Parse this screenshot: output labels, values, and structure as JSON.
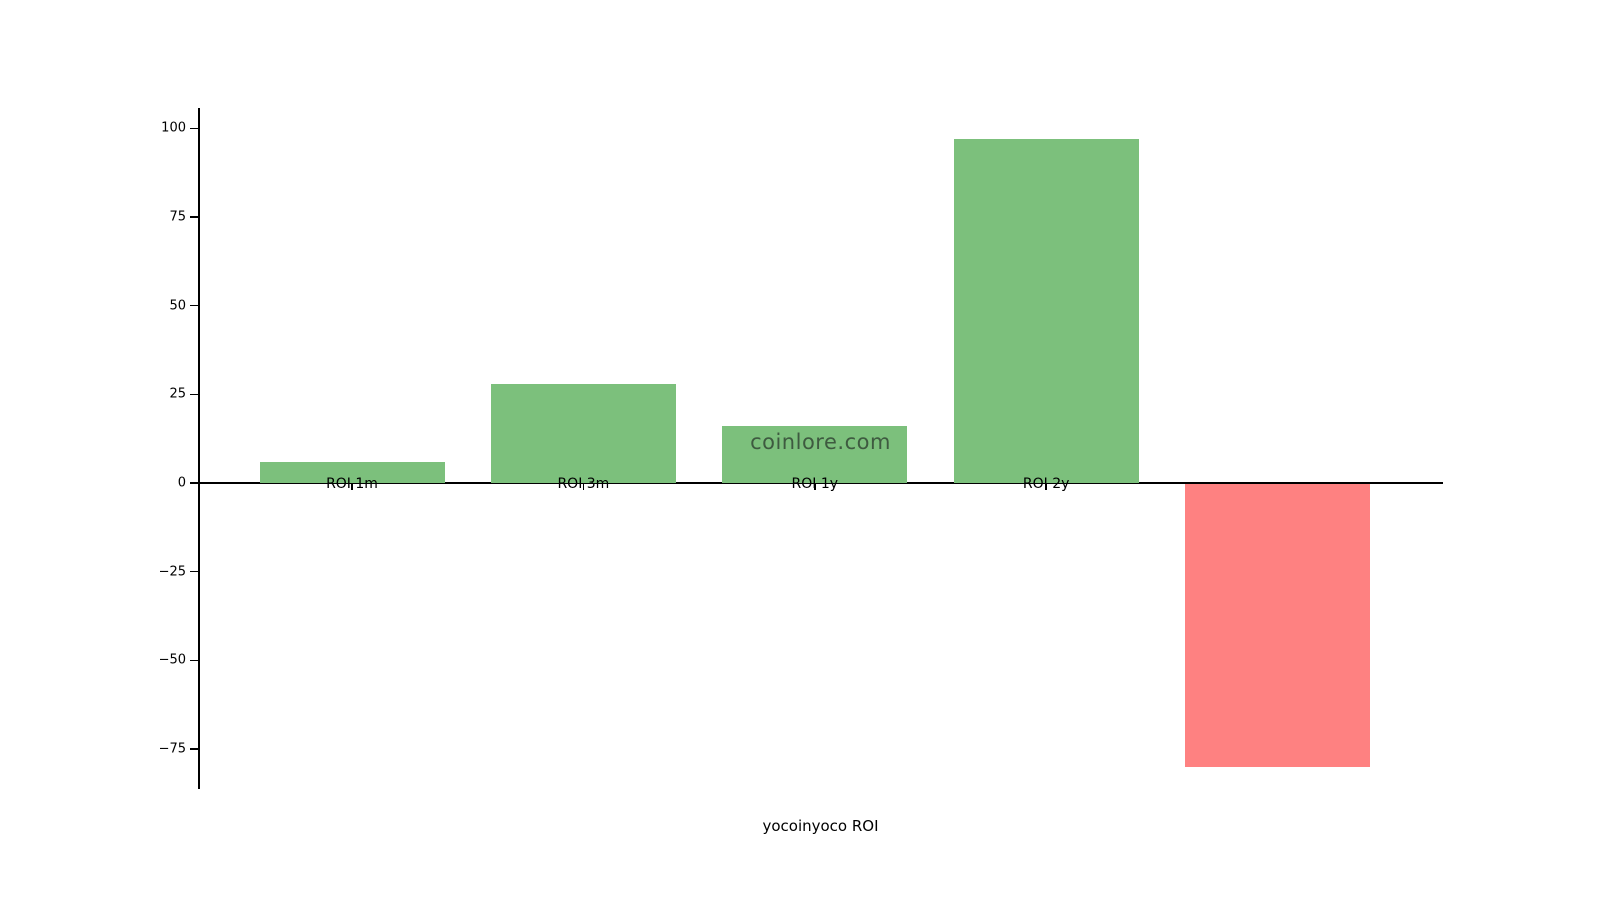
{
  "chart_data": {
    "type": "bar",
    "title": "yocoinyoco ROI",
    "watermark": "coinlore.com",
    "categories": [
      "ROI 1m",
      "ROI 3m",
      "ROI 1y",
      "ROI 2y",
      ""
    ],
    "values": [
      6,
      28,
      16,
      97,
      -80
    ],
    "yticks": [
      100,
      75,
      50,
      25,
      0,
      -25,
      -50,
      -75
    ],
    "ylim": [
      -86,
      106
    ],
    "xlabel": "",
    "ylabel": "",
    "grid": false,
    "legend": "none",
    "colors": {
      "positive_bar": "#7cc07c",
      "negative_bar": "#fe8181",
      "axis": "#000000",
      "text": "#000000",
      "watermark_text": "#2d3e30",
      "background": "#ffffff"
    }
  }
}
